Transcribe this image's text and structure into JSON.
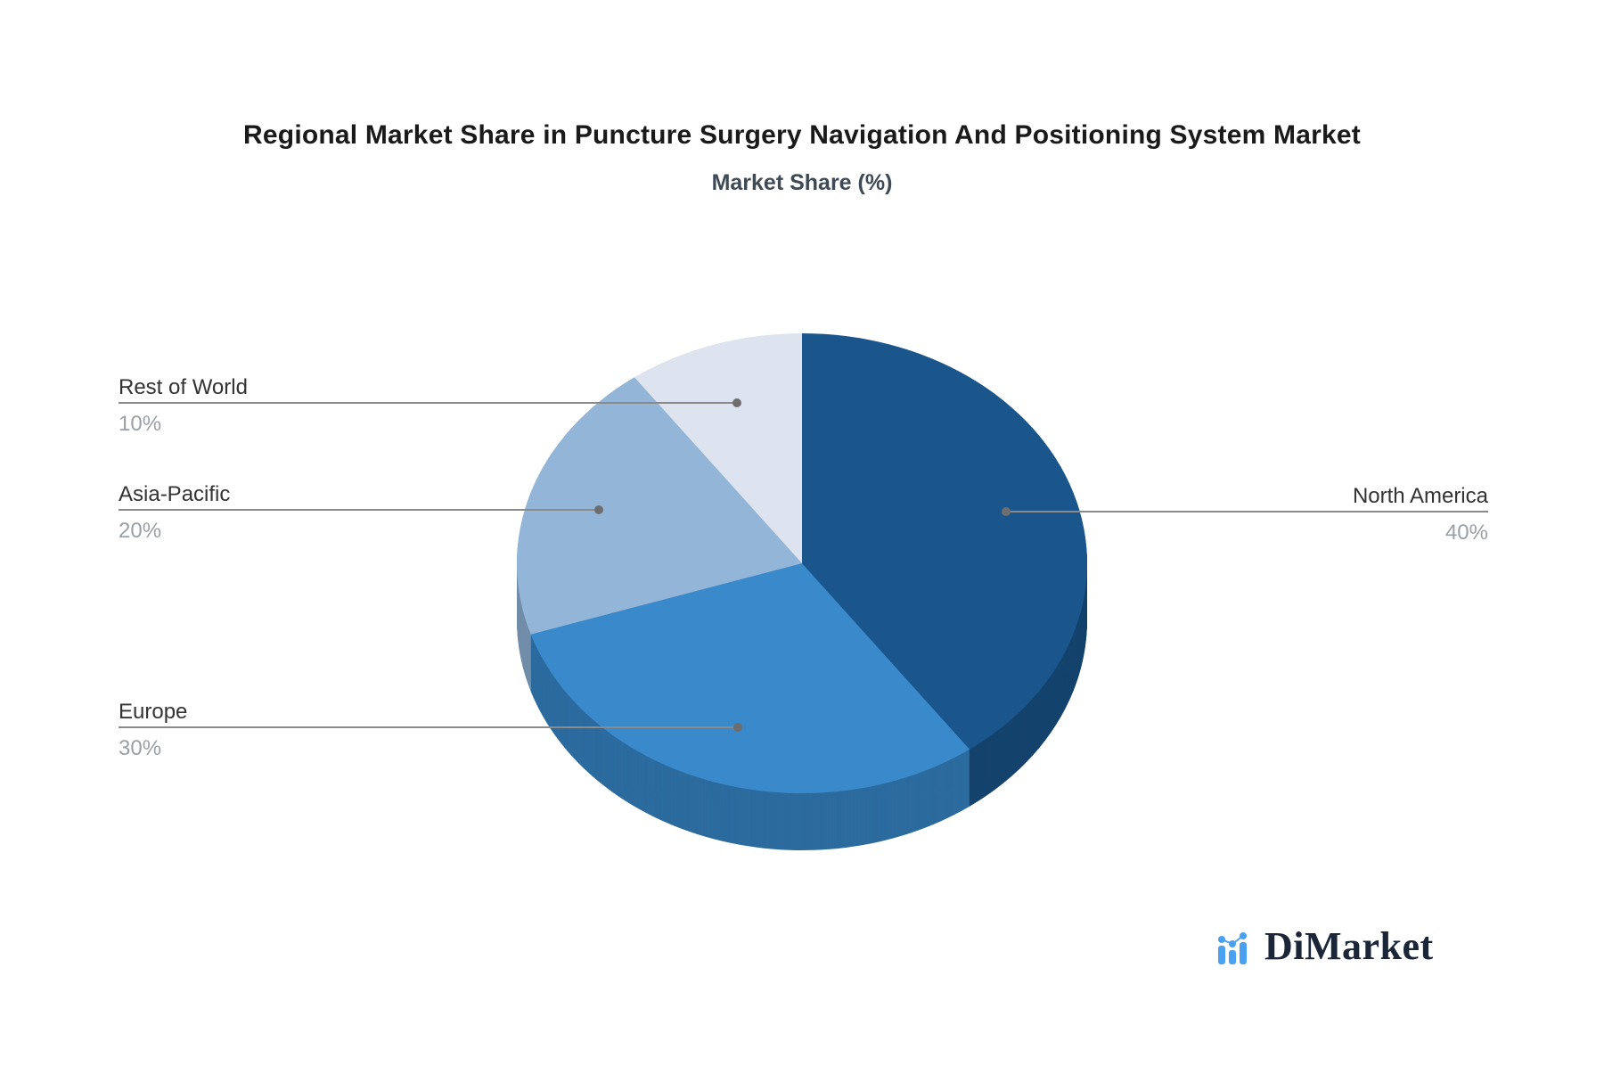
{
  "chart_data": {
    "type": "pie",
    "style": "3d",
    "title": "Regional Market Share in Puncture Surgery Navigation And Positioning System Market",
    "subtitle": "Market Share (%)",
    "start_angle_deg": 0,
    "direction": "clockwise",
    "legend_position": "none",
    "slices": [
      {
        "label": "North America",
        "value": 40,
        "value_text": "40%",
        "color": "#1A568C"
      },
      {
        "label": "Europe",
        "value": 30,
        "value_text": "30%",
        "color": "#3989CB"
      },
      {
        "label": "Asia-Pacific",
        "value": 20,
        "value_text": "20%",
        "color": "#92B5D8"
      },
      {
        "label": "Rest of World",
        "value": 10,
        "value_text": "10%",
        "color": "#DEE4EF"
      }
    ],
    "callout_line_color": "#8A8A8A",
    "callout_dot_color": "#6E6E6E",
    "label_text_color": "#333333",
    "value_text_color": "#9AA0A6"
  },
  "brand": {
    "name": "DiMarket",
    "icon": "bar-chart-logo-icon",
    "icon_color": "#4BA1F1",
    "text_color": "#1B2638"
  }
}
